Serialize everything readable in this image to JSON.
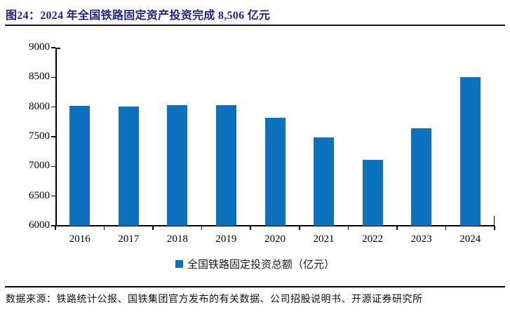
{
  "page": {
    "title": "图24：2024 年全国铁路固定资产投资完成 8,506 亿元",
    "source": "数据来源：铁路统计公报、国铁集团官方发布的有关数据、公司招股说明书、开源证券研究所"
  },
  "colors": {
    "bar": "#0C72BD",
    "title": "#1F1F8F",
    "title_rule": "#12123a",
    "axis": "#000000"
  },
  "chart_data": {
    "type": "bar",
    "title": "2024 年全国铁路固定资产投资完成 8,506 亿元",
    "categories": [
      "2016",
      "2017",
      "2018",
      "2019",
      "2020",
      "2021",
      "2022",
      "2023",
      "2024"
    ],
    "series": [
      {
        "name": "全国铁路固定投资总额（亿元）",
        "values": [
          8015,
          8010,
          8028,
          8029,
          7819,
          7489,
          7109,
          7645,
          8506
        ]
      }
    ],
    "xlabel": "",
    "ylabel": "",
    "ylim": [
      6000,
      9000
    ],
    "yticks": [
      6000,
      6500,
      7000,
      7500,
      8000,
      8500,
      9000
    ],
    "grid": false,
    "legend_position": "bottom"
  }
}
